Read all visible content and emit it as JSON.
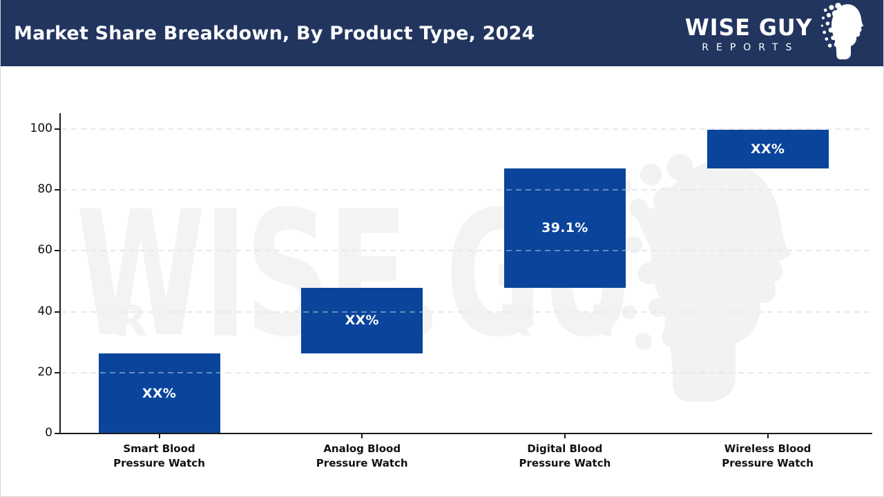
{
  "header": {
    "title": "Market Share Breakdown, By Product Type, 2024",
    "bg_color": "#22355f",
    "logo": {
      "wordmark": "WISE GUY",
      "sub": "REPORTS"
    }
  },
  "watermark": {
    "line1": "WISE GUY",
    "line2": "REPORTS"
  },
  "chart_data": {
    "type": "bar",
    "subtype": "waterfall-segments",
    "title": "Market Share Breakdown, By Product Type, 2024",
    "categories": [
      [
        "Smart Blood",
        "Pressure Watch"
      ],
      [
        "Analog Blood",
        "Pressure Watch"
      ],
      [
        "Digital Blood",
        "Pressure Watch"
      ],
      [
        "Wireless Blood",
        "Pressure Watch"
      ]
    ],
    "segments": [
      {
        "category": "Smart Blood Pressure Watch",
        "start": 0,
        "end": 26,
        "label": "XX%"
      },
      {
        "category": "Analog Blood Pressure Watch",
        "start": 26,
        "end": 47.7,
        "label": "XX%"
      },
      {
        "category": "Digital Blood Pressure Watch",
        "start": 47.7,
        "end": 86.8,
        "label": "39.1%"
      },
      {
        "category": "Wireless Blood Pressure Watch",
        "start": 86.8,
        "end": 99.5,
        "label": "XX%"
      }
    ],
    "yticks": [
      0,
      20,
      40,
      60,
      80,
      100
    ],
    "ylim": [
      0,
      100
    ],
    "grid": "horizontal-dashed",
    "legend": "none",
    "bar_color": "#0a449b",
    "bar_label_color": "#ffffff",
    "axis_color": "#1a1a1a",
    "grid_color": "#dadada"
  }
}
